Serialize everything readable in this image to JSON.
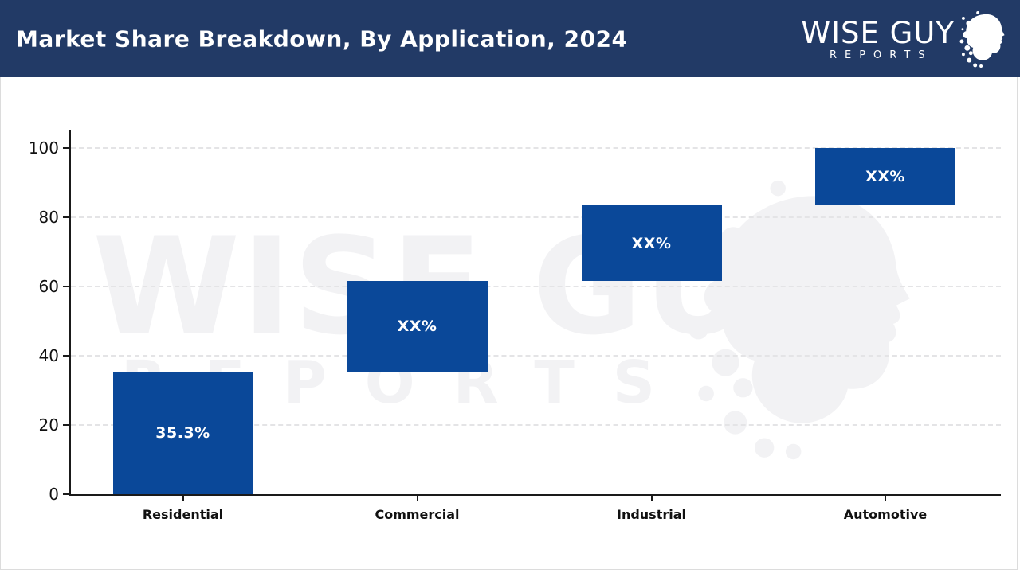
{
  "header": {
    "title": "Market Share Breakdown, By Application, 2024",
    "logo": {
      "line1": "WISE GUY",
      "line2": "REPORTS"
    }
  },
  "watermark": {
    "line1": "WISE GUY",
    "line2": "REPORTS"
  },
  "chart_data": {
    "type": "bar",
    "variant": "floating-waterfall",
    "title": "Market Share Breakdown, By Application, 2024",
    "categories": [
      "Residential",
      "Commercial",
      "Industrial",
      "Automotive"
    ],
    "series": [
      {
        "name": "Market Share",
        "ranges": [
          [
            0,
            35.3
          ],
          [
            35.3,
            61.5
          ],
          [
            61.5,
            83.5
          ],
          [
            83.5,
            100
          ]
        ],
        "labels": [
          "35.3%",
          "XX%",
          "XX%",
          "XX%"
        ]
      }
    ],
    "ylim": [
      0,
      100
    ],
    "yticks": [
      0,
      20,
      40,
      60,
      80,
      100
    ],
    "grid": "horizontal-dashed",
    "legend": "none",
    "bar_color": "#0a4899",
    "bar_label_color": "#ffffff",
    "header_color": "#223a66",
    "gridline_color": "#e4e4e6"
  }
}
